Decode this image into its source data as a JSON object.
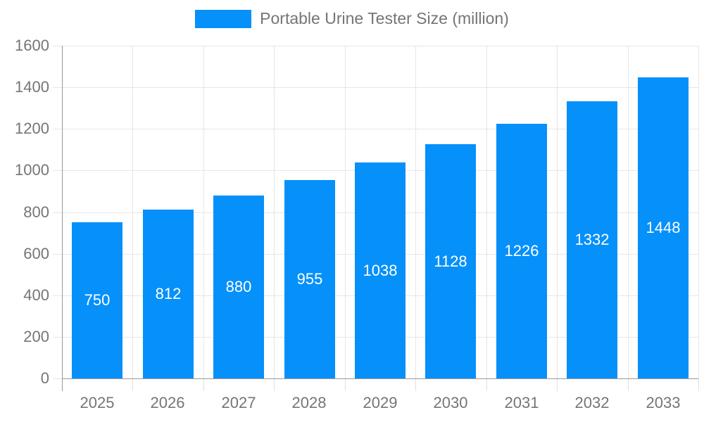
{
  "chart_data": {
    "type": "bar",
    "title": "Portable Urine Tester Size (million)",
    "categories": [
      "2025",
      "2026",
      "2027",
      "2028",
      "2029",
      "2030",
      "2031",
      "2032",
      "2033"
    ],
    "values": [
      750,
      812,
      880,
      955,
      1038,
      1128,
      1226,
      1332,
      1448
    ],
    "value_labels": [
      "750",
      "812",
      "880",
      "955",
      "1038",
      "1128",
      "1226",
      "1332",
      "1448"
    ],
    "xlabel": "",
    "ylabel": "",
    "ylim": [
      0,
      1600
    ],
    "ytick_step": 200,
    "yticks": [
      "0",
      "200",
      "400",
      "600",
      "800",
      "1000",
      "1200",
      "1400",
      "1600"
    ],
    "grid": true,
    "legend_position": "top-center",
    "value_label_position": "inside-middle",
    "colors": {
      "bar": "#0690fa",
      "grid": "#e6e6e6",
      "axis": "#999999",
      "tick": "#e0e0e0",
      "axis_text": "#757575",
      "value_text": "#ffffff",
      "background": "#ffffff"
    }
  }
}
